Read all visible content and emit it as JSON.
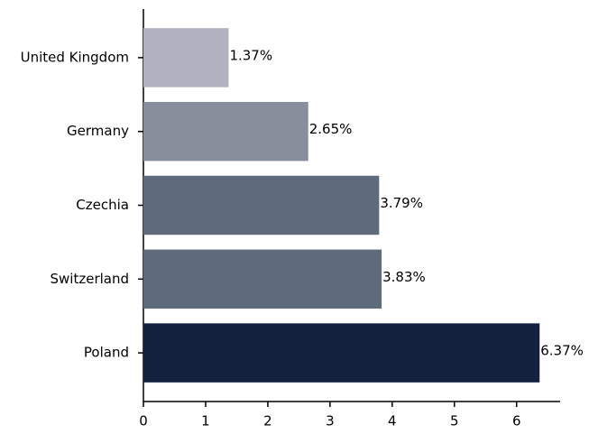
{
  "chart_data": {
    "type": "barh",
    "categories": [
      "United Kingdom",
      "Germany",
      "Czechia",
      "Switzerland",
      "Poland"
    ],
    "values": [
      1.37,
      2.65,
      3.79,
      3.83,
      6.37
    ],
    "value_labels": [
      "1.37%",
      "2.65%",
      "3.79%",
      "3.83%",
      "6.37%"
    ],
    "colors": [
      "#b0b3bf",
      "#878f9c",
      "#5f6a7c",
      "#5f6a7c",
      "#13213f"
    ],
    "xlim": [
      0,
      6.7
    ],
    "xticks": [
      0,
      1,
      2,
      3,
      4,
      5,
      6
    ],
    "grid": false
  }
}
